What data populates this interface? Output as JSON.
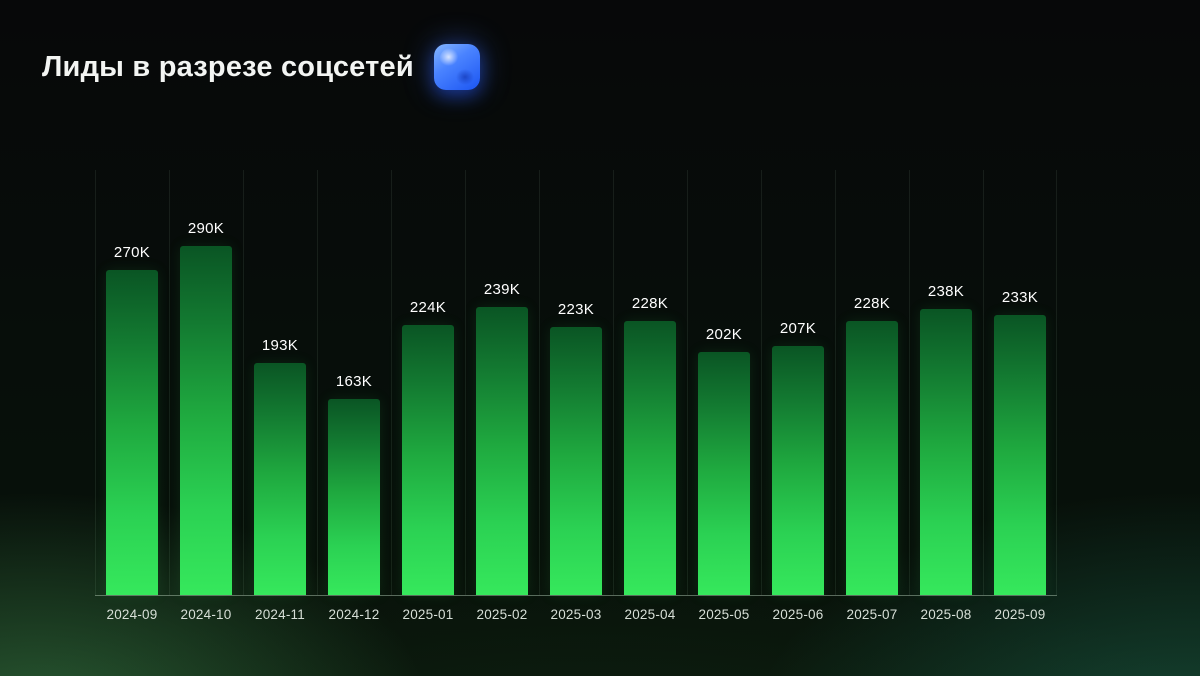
{
  "header": {
    "title": "Лиды в разрезе соцсетей"
  },
  "chart_data": {
    "type": "bar",
    "title": "Лиды в разрезе соцсетей",
    "categories": [
      "2024-09",
      "2024-10",
      "2024-11",
      "2024-12",
      "2025-01",
      "2025-02",
      "2025-03",
      "2025-04",
      "2025-05",
      "2025-06",
      "2025-07",
      "2025-08",
      "2025-09"
    ],
    "values": [
      270,
      290,
      193,
      163,
      224,
      239,
      223,
      228,
      202,
      207,
      228,
      238,
      233
    ],
    "value_labels": [
      "270K",
      "290K",
      "193K",
      "163K",
      "224K",
      "239K",
      "223K",
      "228K",
      "202K",
      "207K",
      "228K",
      "238K",
      "233K"
    ],
    "unit": "K",
    "xlabel": "",
    "ylabel": "",
    "ylim": [
      0,
      354
    ],
    "grid": "vertical-faint",
    "legend": "none",
    "colors": {
      "bar_gradient_top": "#0a5524",
      "bar_gradient_bottom": "#36e85c",
      "background": "#070a08",
      "value_label": "#ffffff",
      "axis_label": "#d7dfd7",
      "accent_icon": "#2f6bff",
      "glow_left": "#58c470",
      "glow_right": "#2ca884"
    }
  }
}
